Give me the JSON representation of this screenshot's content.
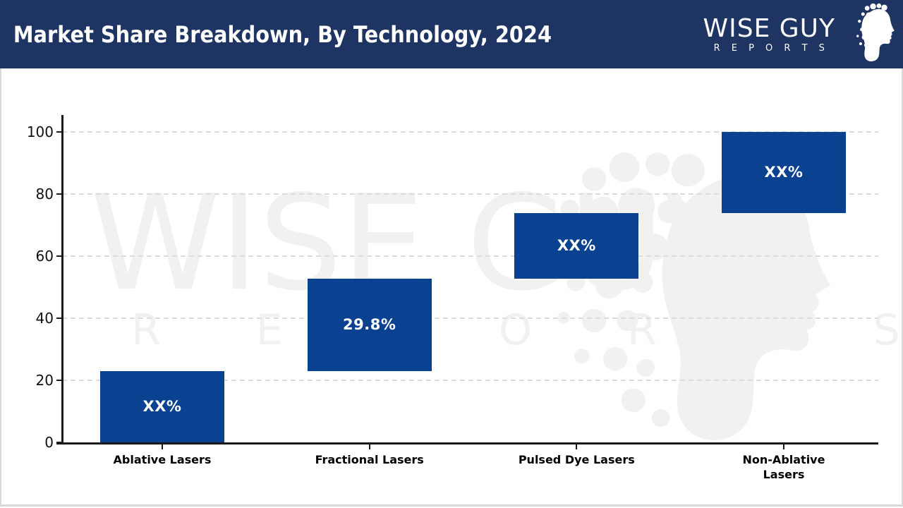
{
  "header": {
    "title": "Market Share Breakdown, By Technology, 2024",
    "logo": {
      "line1": "WISE GUY",
      "line2": "R E P O R T S"
    }
  },
  "watermark": {
    "line1": "WISE GUY",
    "line2": "R E P O R T S"
  },
  "colors": {
    "header_bg": "#1e3563",
    "bar": "#0a4191",
    "grid": "#dcdcdc",
    "axis": "#1a1a1a",
    "bar_label": "#ffffff",
    "watermark": "#f1f1f2",
    "border": "#d9d9d9"
  },
  "chart_data": {
    "type": "bar",
    "subtype": "waterfall",
    "title": "Market Share Breakdown, By Technology, 2024",
    "categories": [
      "Ablative Lasers",
      "Fractional Lasers",
      "Pulsed Dye Lasers",
      "Non-Ablative\nLasers"
    ],
    "segments": [
      {
        "category": "Ablative Lasers",
        "start": 0,
        "end": 23,
        "label": "XX%"
      },
      {
        "category": "Fractional Lasers",
        "start": 23,
        "end": 52.8,
        "label": "29.8%"
      },
      {
        "category": "Pulsed Dye Lasers",
        "start": 52.8,
        "end": 73.9,
        "label": "XX%"
      },
      {
        "category": "Non-Ablative Lasers",
        "start": 73.9,
        "end": 100,
        "label": "XX%"
      }
    ],
    "yticks": [
      0,
      20,
      40,
      60,
      80,
      100
    ],
    "ylim": [
      0,
      106
    ],
    "xlabel": "",
    "ylabel": "",
    "grid": "horizontal-dashed",
    "legend": "none",
    "bar_color": "#0a4191",
    "value_label_color": "#ffffff"
  }
}
